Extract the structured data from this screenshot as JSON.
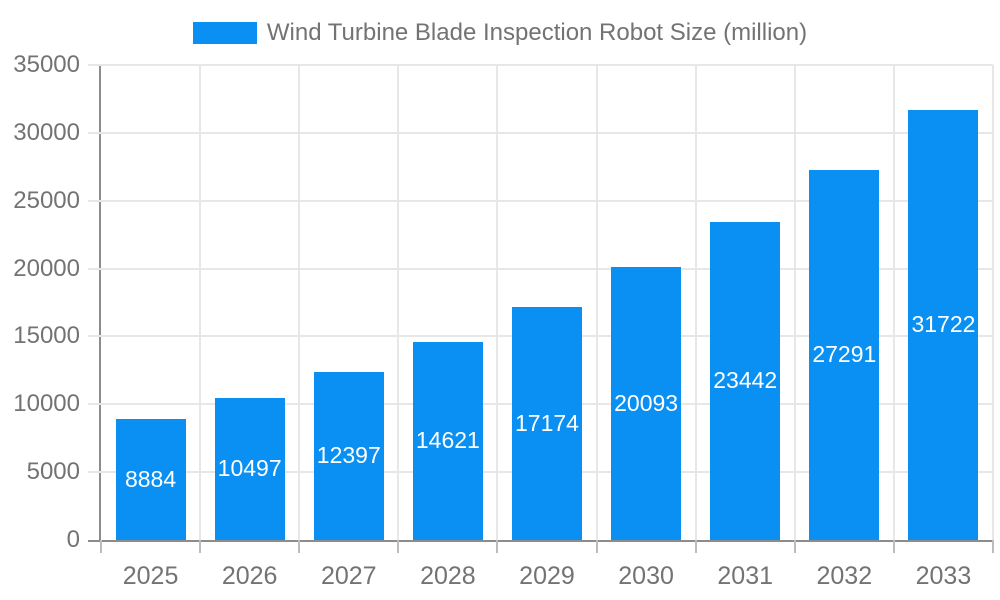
{
  "chart_data": {
    "type": "bar",
    "title": "Wind Turbine Blade Inspection Robot Size (million)",
    "categories": [
      "2025",
      "2026",
      "2027",
      "2028",
      "2029",
      "2030",
      "2031",
      "2032",
      "2033"
    ],
    "values": [
      8884,
      10497,
      12397,
      14621,
      17174,
      20093,
      23442,
      27291,
      31722
    ],
    "xlabel": "",
    "ylabel": "",
    "ylim": [
      0,
      35000
    ],
    "ytick_step": 5000,
    "ytick_labels": [
      "0",
      "5000",
      "10000",
      "15000",
      "20000",
      "25000",
      "30000",
      "35000"
    ],
    "grid": true,
    "legend_position": "top-center",
    "value_labels": "centered-inside-bars",
    "colors": {
      "bar": "#0a8ff2",
      "grid": "#e7e7e7",
      "axis": "#8c8c8c",
      "tick": "#bdbdbd",
      "text": "#737373",
      "value_label": "#ffffff",
      "background": "#ffffff"
    }
  }
}
